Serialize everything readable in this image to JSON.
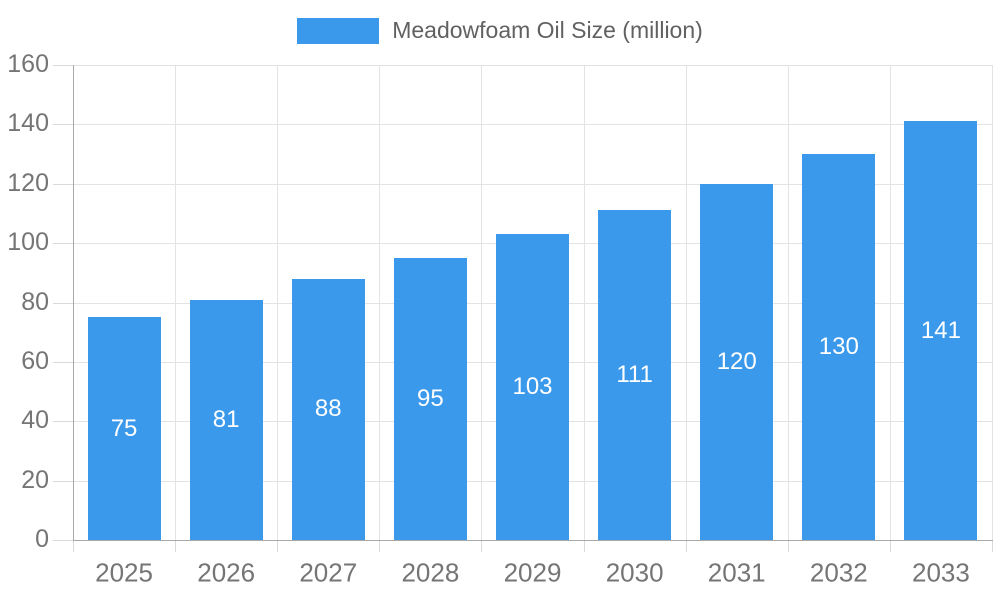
{
  "chart_data": {
    "type": "bar",
    "series_label": "Meadowfoam Oil Size (million)",
    "categories": [
      "2025",
      "2026",
      "2027",
      "2028",
      "2029",
      "2030",
      "2031",
      "2032",
      "2033"
    ],
    "values": [
      75,
      81,
      88,
      95,
      103,
      111,
      120,
      130,
      141
    ],
    "xlabel": "",
    "ylabel": "",
    "ylim": [
      0,
      160
    ],
    "ytick_step": 20,
    "ytick_labels": [
      "0",
      "20",
      "40",
      "60",
      "80",
      "100",
      "120",
      "140",
      "160"
    ],
    "grid": true,
    "legend_position": "top-center",
    "value_label_position": "inside-center"
  },
  "colors": {
    "bar": "#3b99ec",
    "grid": "#e3e3e3",
    "axis": "#a8a8a8",
    "tick": "#d9d9d9",
    "axis_text": "#757575",
    "legend_text": "#616161",
    "value_text": "#ffffff"
  }
}
